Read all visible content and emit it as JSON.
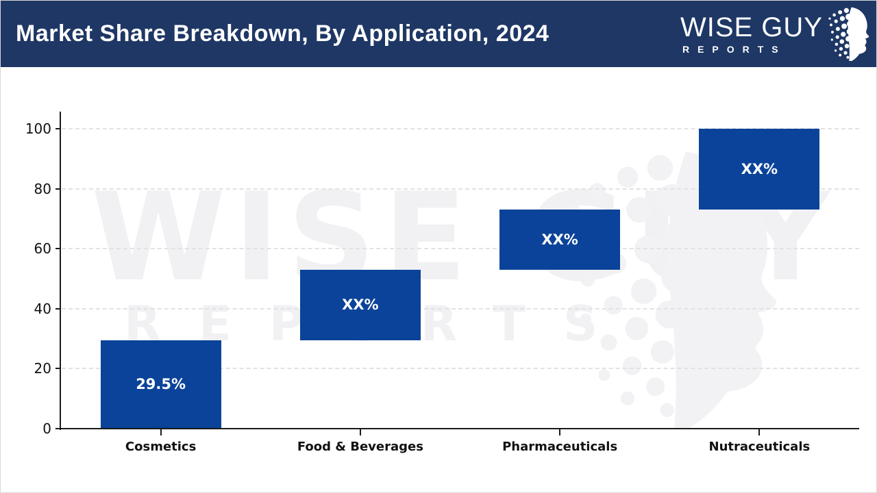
{
  "header": {
    "title": "Market Share Breakdown, By Application, 2024",
    "logo": {
      "brand": "WISE GUY",
      "sub": "REPORTS",
      "face_icon": "dotted-head-profile"
    }
  },
  "watermark": {
    "brand": "WISE GUY",
    "sub": "REPORTS",
    "face_icon": "dotted-head-profile"
  },
  "chart_data": {
    "type": "bar",
    "subtype": "floating-waterfall",
    "title": "Market Share Breakdown, By Application, 2024",
    "categories": [
      "Cosmetics",
      "Food & Beverages",
      "Pharmaceuticals",
      "Nutraceuticals"
    ],
    "segments": [
      {
        "category": "Cosmetics",
        "start": 0,
        "end": 29.5,
        "label": "29.5%"
      },
      {
        "category": "Food & Beverages",
        "start": 29.5,
        "end": 53,
        "label": "XX%"
      },
      {
        "category": "Pharmaceuticals",
        "start": 53,
        "end": 73,
        "label": "XX%"
      },
      {
        "category": "Nutraceuticals",
        "start": 73,
        "end": 100,
        "label": "XX%"
      }
    ],
    "xlabel": "",
    "ylabel": "",
    "y_ticks": [
      0,
      20,
      40,
      60,
      80,
      100
    ],
    "ylim": [
      0,
      100
    ],
    "grid": "horizontal-dashed",
    "legend": "none"
  },
  "colors": {
    "header_bg": "#1e3765",
    "bar": "#0a4399",
    "bar_label": "#ffffff",
    "axis": "#1a1a1a",
    "grid": "#e2e2e2",
    "watermark": "#f1f1f4",
    "page_border": "#d8d8d8"
  }
}
